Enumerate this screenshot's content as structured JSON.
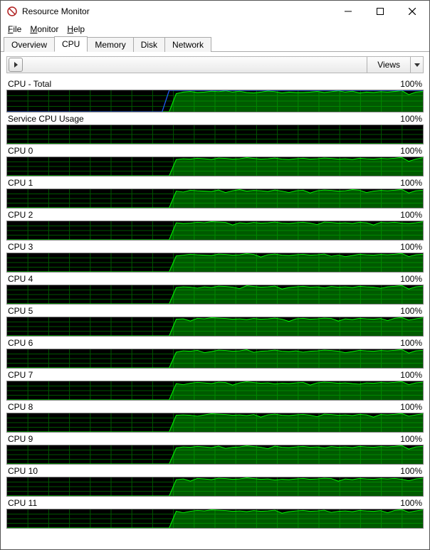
{
  "window": {
    "title": "Resource Monitor",
    "minimize_glyph": "—",
    "maximize_glyph": "□",
    "close_glyph": "✕"
  },
  "menu": {
    "file": "File",
    "monitor": "Monitor",
    "help": "Help"
  },
  "tabs": {
    "overview": "Overview",
    "cpu": "CPU",
    "memory": "Memory",
    "disk": "Disk",
    "network": "Network",
    "active": "cpu"
  },
  "panel": {
    "views_label": "Views"
  },
  "graph_style": {
    "bg": "#000000",
    "grid_color": "#005500",
    "fill_color": "rgba(0,200,0,0.45)",
    "stroke_color": "#00ff00",
    "blue_color": "#2060ff",
    "vgrid_count": 20,
    "hgrid_count": 3
  },
  "graphs": [
    {
      "label": "CPU - Total",
      "max_label": "100%",
      "tall": true,
      "has_blue": true,
      "data": [
        0,
        0,
        0,
        0,
        0,
        0,
        0,
        0,
        0,
        0,
        0,
        0,
        0,
        0,
        0,
        0,
        0,
        0,
        0,
        0,
        0,
        0,
        0,
        0,
        85,
        92,
        95,
        90,
        92,
        96,
        94,
        98,
        92,
        96,
        90,
        88,
        92,
        97,
        94,
        88,
        92,
        90,
        90,
        92,
        95,
        90,
        94,
        98,
        92,
        96,
        88,
        92,
        90,
        94,
        92,
        95,
        99,
        80,
        92,
        95
      ],
      "blue": [
        0,
        0,
        0,
        0,
        0,
        0,
        0,
        0,
        0,
        0,
        0,
        0,
        0,
        0,
        0,
        0,
        0,
        0,
        0,
        0,
        0,
        0,
        0,
        100,
        100,
        100,
        100,
        100,
        100,
        100,
        100,
        100,
        100,
        100,
        100,
        100,
        100,
        100,
        100,
        100,
        100,
        100,
        100,
        100,
        100,
        100,
        100,
        100,
        100,
        100,
        100,
        100,
        100,
        100,
        100,
        100,
        100,
        100,
        100,
        100
      ]
    },
    {
      "label": "Service CPU Usage",
      "max_label": "100%",
      "tall": false,
      "data": [
        0,
        0,
        0,
        0,
        0,
        0,
        0,
        0,
        0,
        0,
        0,
        0,
        0,
        0,
        0,
        0,
        0,
        0,
        0,
        0,
        0,
        0,
        0,
        0,
        0,
        0,
        0,
        0,
        0,
        0,
        0,
        0,
        0,
        0,
        0,
        0,
        0,
        0,
        0,
        0,
        0,
        0,
        0,
        0,
        0,
        0,
        0,
        0,
        0,
        0,
        0,
        0,
        0,
        0,
        0,
        0,
        0,
        0,
        0,
        0
      ]
    },
    {
      "label": "CPU 0",
      "max_label": "100%",
      "tall": false,
      "data": [
        0,
        0,
        0,
        0,
        0,
        0,
        0,
        0,
        0,
        0,
        0,
        0,
        0,
        0,
        0,
        0,
        0,
        0,
        0,
        0,
        0,
        0,
        0,
        0,
        88,
        92,
        90,
        95,
        92,
        88,
        96,
        94,
        90,
        92,
        98,
        94,
        90,
        92,
        96,
        90,
        88,
        92,
        95,
        90,
        92,
        96,
        94,
        90,
        92,
        88,
        95,
        92,
        90,
        94,
        92,
        95,
        99,
        78,
        90,
        98
      ]
    },
    {
      "label": "CPU 1",
      "max_label": "100%",
      "tall": false,
      "data": [
        0,
        0,
        0,
        0,
        0,
        0,
        0,
        0,
        0,
        0,
        0,
        0,
        0,
        0,
        0,
        0,
        0,
        0,
        0,
        0,
        0,
        0,
        0,
        0,
        90,
        85,
        95,
        92,
        90,
        88,
        96,
        82,
        92,
        98,
        90,
        94,
        92,
        88,
        96,
        90,
        82,
        92,
        95,
        80,
        92,
        96,
        94,
        90,
        92,
        98,
        95,
        82,
        90,
        94,
        92,
        95,
        99,
        80,
        92,
        95
      ]
    },
    {
      "label": "CPU 2",
      "max_label": "100%",
      "tall": false,
      "data": [
        0,
        0,
        0,
        0,
        0,
        0,
        0,
        0,
        0,
        0,
        0,
        0,
        0,
        0,
        0,
        0,
        0,
        0,
        0,
        0,
        0,
        0,
        0,
        0,
        92,
        88,
        90,
        95,
        92,
        98,
        96,
        94,
        80,
        92,
        88,
        94,
        90,
        92,
        96,
        90,
        88,
        92,
        95,
        90,
        82,
        96,
        94,
        90,
        92,
        88,
        95,
        92,
        80,
        94,
        92,
        95,
        90,
        88,
        92,
        98
      ]
    },
    {
      "label": "CPU 3",
      "max_label": "100%",
      "tall": false,
      "data": [
        0,
        0,
        0,
        0,
        0,
        0,
        0,
        0,
        0,
        0,
        0,
        0,
        0,
        0,
        0,
        0,
        0,
        0,
        0,
        0,
        0,
        0,
        0,
        0,
        86,
        90,
        95,
        92,
        90,
        88,
        96,
        94,
        90,
        92,
        98,
        94,
        80,
        92,
        96,
        90,
        88,
        92,
        95,
        90,
        92,
        96,
        84,
        90,
        82,
        88,
        95,
        92,
        90,
        94,
        92,
        95,
        99,
        82,
        92,
        95
      ]
    },
    {
      "label": "CPU 4",
      "max_label": "100%",
      "tall": false,
      "data": [
        0,
        0,
        0,
        0,
        0,
        0,
        0,
        0,
        0,
        0,
        0,
        0,
        0,
        0,
        0,
        0,
        0,
        0,
        0,
        0,
        0,
        0,
        0,
        0,
        88,
        92,
        90,
        85,
        92,
        88,
        96,
        94,
        90,
        82,
        98,
        94,
        90,
        92,
        96,
        80,
        88,
        92,
        95,
        90,
        92,
        86,
        94,
        90,
        92,
        88,
        95,
        92,
        90,
        84,
        92,
        95,
        99,
        80,
        92,
        96
      ]
    },
    {
      "label": "CPU 5",
      "max_label": "100%",
      "tall": false,
      "data": [
        0,
        0,
        0,
        0,
        0,
        0,
        0,
        0,
        0,
        0,
        0,
        0,
        0,
        0,
        0,
        0,
        0,
        0,
        0,
        0,
        0,
        0,
        0,
        0,
        90,
        92,
        80,
        95,
        92,
        98,
        96,
        94,
        90,
        92,
        88,
        94,
        90,
        92,
        96,
        90,
        78,
        92,
        95,
        90,
        92,
        96,
        94,
        80,
        92,
        88,
        95,
        92,
        90,
        94,
        82,
        95,
        99,
        85,
        92,
        98
      ]
    },
    {
      "label": "CPU 6",
      "max_label": "100%",
      "tall": false,
      "data": [
        0,
        0,
        0,
        0,
        0,
        0,
        0,
        0,
        0,
        0,
        0,
        0,
        0,
        0,
        0,
        0,
        0,
        0,
        0,
        0,
        0,
        0,
        0,
        0,
        85,
        92,
        90,
        95,
        82,
        88,
        96,
        94,
        90,
        92,
        98,
        84,
        90,
        92,
        96,
        90,
        88,
        92,
        85,
        90,
        92,
        96,
        94,
        90,
        82,
        88,
        95,
        92,
        90,
        94,
        92,
        95,
        99,
        80,
        92,
        95
      ]
    },
    {
      "label": "CPU 7",
      "max_label": "100%",
      "tall": false,
      "data": [
        0,
        0,
        0,
        0,
        0,
        0,
        0,
        0,
        0,
        0,
        0,
        0,
        0,
        0,
        0,
        0,
        0,
        0,
        0,
        0,
        0,
        0,
        0,
        0,
        88,
        82,
        90,
        95,
        92,
        88,
        96,
        94,
        80,
        92,
        98,
        94,
        90,
        92,
        86,
        90,
        88,
        92,
        95,
        80,
        92,
        96,
        94,
        90,
        92,
        88,
        85,
        92,
        90,
        94,
        92,
        95,
        99,
        82,
        92,
        96
      ]
    },
    {
      "label": "CPU 8",
      "max_label": "100%",
      "tall": false,
      "data": [
        0,
        0,
        0,
        0,
        0,
        0,
        0,
        0,
        0,
        0,
        0,
        0,
        0,
        0,
        0,
        0,
        0,
        0,
        0,
        0,
        0,
        0,
        0,
        0,
        90,
        92,
        90,
        85,
        92,
        98,
        96,
        94,
        90,
        92,
        88,
        94,
        80,
        92,
        96,
        90,
        88,
        92,
        95,
        90,
        82,
        96,
        94,
        90,
        92,
        88,
        95,
        92,
        80,
        94,
        92,
        95,
        99,
        85,
        92,
        98
      ]
    },
    {
      "label": "CPU 9",
      "max_label": "100%",
      "tall": false,
      "data": [
        0,
        0,
        0,
        0,
        0,
        0,
        0,
        0,
        0,
        0,
        0,
        0,
        0,
        0,
        0,
        0,
        0,
        0,
        0,
        0,
        0,
        0,
        0,
        0,
        86,
        92,
        90,
        95,
        92,
        88,
        96,
        84,
        90,
        92,
        98,
        94,
        90,
        82,
        96,
        90,
        88,
        92,
        95,
        90,
        92,
        86,
        94,
        90,
        92,
        88,
        95,
        92,
        90,
        94,
        92,
        95,
        99,
        80,
        92,
        95
      ]
    },
    {
      "label": "CPU 10",
      "max_label": "100%",
      "tall": false,
      "data": [
        0,
        0,
        0,
        0,
        0,
        0,
        0,
        0,
        0,
        0,
        0,
        0,
        0,
        0,
        0,
        0,
        0,
        0,
        0,
        0,
        0,
        0,
        0,
        0,
        88,
        92,
        80,
        95,
        92,
        88,
        96,
        94,
        90,
        92,
        98,
        94,
        90,
        92,
        86,
        90,
        88,
        92,
        95,
        90,
        92,
        96,
        94,
        80,
        92,
        88,
        95,
        92,
        90,
        94,
        92,
        95,
        90,
        82,
        92,
        96
      ]
    },
    {
      "label": "CPU 11",
      "max_label": "100%",
      "tall": false,
      "data": [
        0,
        0,
        0,
        0,
        0,
        0,
        0,
        0,
        0,
        0,
        0,
        0,
        0,
        0,
        0,
        0,
        0,
        0,
        0,
        0,
        0,
        0,
        0,
        0,
        90,
        82,
        90,
        95,
        92,
        98,
        96,
        94,
        90,
        92,
        88,
        94,
        90,
        92,
        96,
        80,
        88,
        92,
        95,
        90,
        92,
        96,
        84,
        90,
        92,
        88,
        95,
        92,
        90,
        94,
        82,
        95,
        99,
        85,
        92,
        98
      ]
    }
  ]
}
